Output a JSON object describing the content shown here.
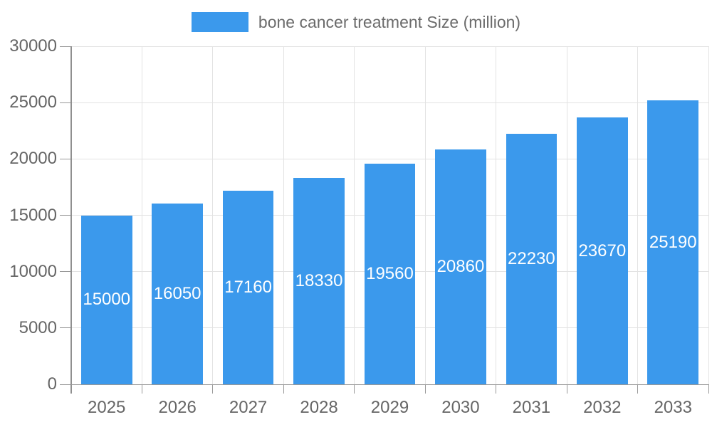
{
  "legend": {
    "label": "bone cancer treatment Size (million)"
  },
  "chart_data": {
    "type": "bar",
    "title": "bone cancer treatment Size (million)",
    "categories": [
      "2025",
      "2026",
      "2027",
      "2028",
      "2029",
      "2030",
      "2031",
      "2032",
      "2033"
    ],
    "series": [
      {
        "name": "bone cancer treatment Size (million)",
        "values": [
          15000,
          16050,
          17160,
          18330,
          19560,
          20860,
          22230,
          23670,
          25190
        ]
      }
    ],
    "xlabel": "",
    "ylabel": "",
    "ylim": [
      0,
      30000
    ],
    "yticks": [
      0,
      5000,
      10000,
      15000,
      20000,
      25000,
      30000
    ],
    "grid": true,
    "legend_position": "top-center",
    "value_labels": "inside-center",
    "colors": {
      "bar": "#3B99EC",
      "value_label": "#ffffff",
      "axis_label": "#666666",
      "legend_label": "#6b6b6b",
      "gridline": "#e3e3e3",
      "axis_line": "#999999"
    }
  }
}
